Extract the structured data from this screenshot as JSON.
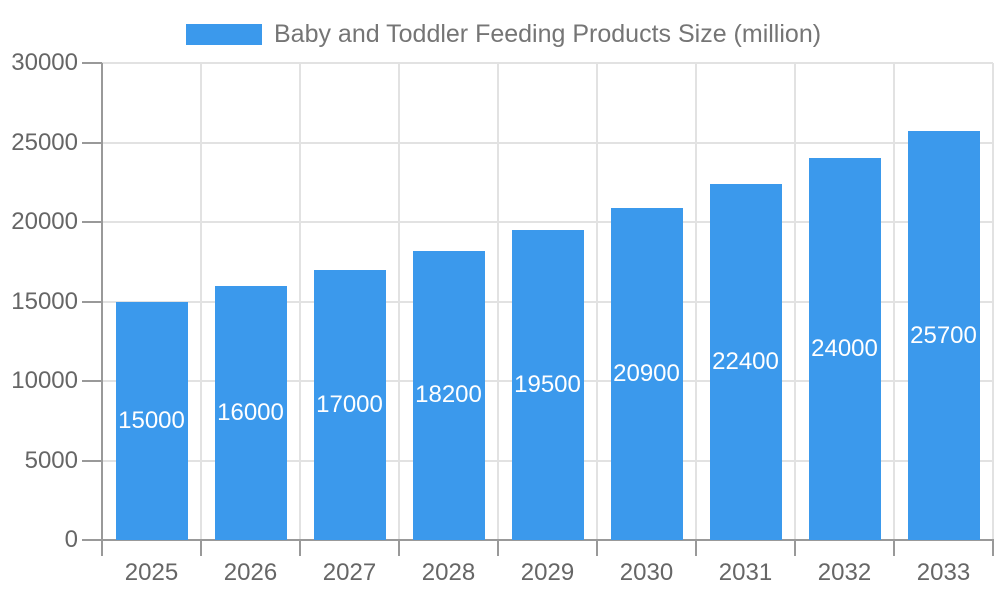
{
  "legend": {
    "label": "Baby and Toddler Feeding Products Size (million)"
  },
  "colors": {
    "bar": "#3B99EC",
    "axis_line": "#999999",
    "gridline": "#E2E2E2",
    "axis_label_text": "#666666",
    "legend_text": "#757575",
    "value_label_text": "#FFFFFF",
    "background": "#FFFFFF"
  },
  "chart_data": {
    "type": "bar",
    "title": "Baby and Toddler Feeding Products Size (million)",
    "categories": [
      "2025",
      "2026",
      "2027",
      "2028",
      "2029",
      "2030",
      "2031",
      "2032",
      "2033"
    ],
    "values": [
      15000,
      16000,
      17000,
      18200,
      19500,
      20900,
      22400,
      24000,
      25700
    ],
    "xlabel": "",
    "ylabel": "",
    "ylim": [
      0,
      30000
    ],
    "yticks": [
      0,
      5000,
      10000,
      15000,
      20000,
      25000,
      30000
    ],
    "grid": true,
    "legend_position": "top",
    "value_labels_position": "inside-center"
  }
}
